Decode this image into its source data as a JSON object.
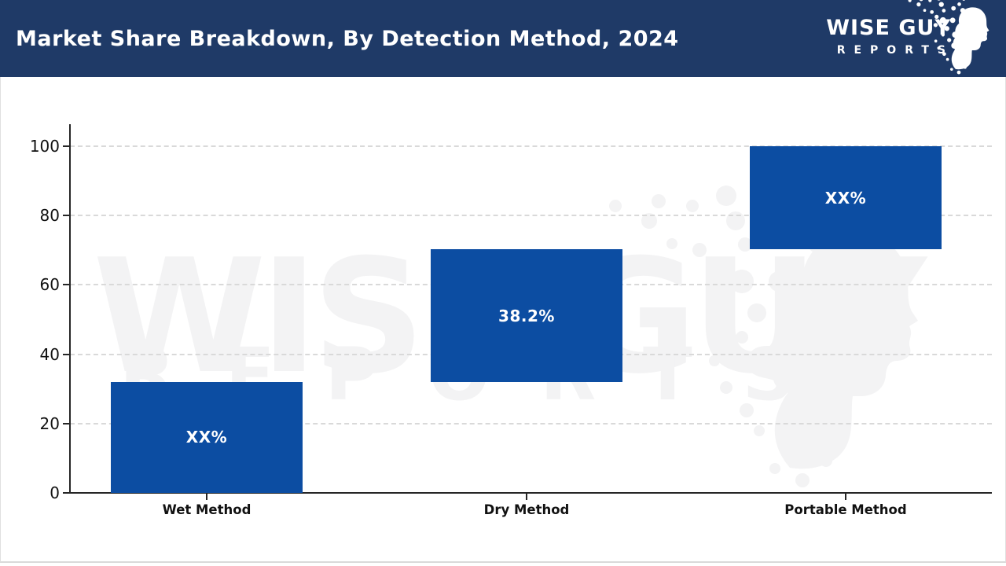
{
  "header": {
    "title": "Market Share Breakdown, By Detection Method, 2024",
    "logo": {
      "line1": "WISE GUY",
      "line2": "REPORTS"
    }
  },
  "watermark": {
    "line1": "WISE GUY",
    "line2": "REPORTS"
  },
  "colors": {
    "header_bg": "#1f3a67",
    "bar_blue": "#0c4da2",
    "watermark_gray": "#f3f3f4",
    "grid_gray": "#d9d9d9",
    "axis_dark": "#262626",
    "title_text": "#ffffff",
    "bar_label_text": "#ffffff",
    "tick_text": "#111111"
  },
  "chart_data": {
    "type": "bar",
    "subtype": "waterfall",
    "title": "Market Share Breakdown, By Detection Method, 2024",
    "categories": [
      "Wet Method",
      "Dry Method",
      "Portable Method"
    ],
    "segments": [
      {
        "category": "Wet Method",
        "start": 0,
        "end": 32,
        "label": "XX%"
      },
      {
        "category": "Dry Method",
        "start": 32,
        "end": 70.2,
        "label": "38.2%"
      },
      {
        "category": "Portable Method",
        "start": 70.2,
        "end": 100,
        "label": "XX%"
      }
    ],
    "yticks": [
      0,
      20,
      40,
      60,
      80,
      100
    ],
    "ylim": [
      0,
      106
    ],
    "xlabel": "",
    "ylabel": "",
    "grid": "horizontal-dashed",
    "legend": "none",
    "bar_color": "#0c4da2"
  }
}
